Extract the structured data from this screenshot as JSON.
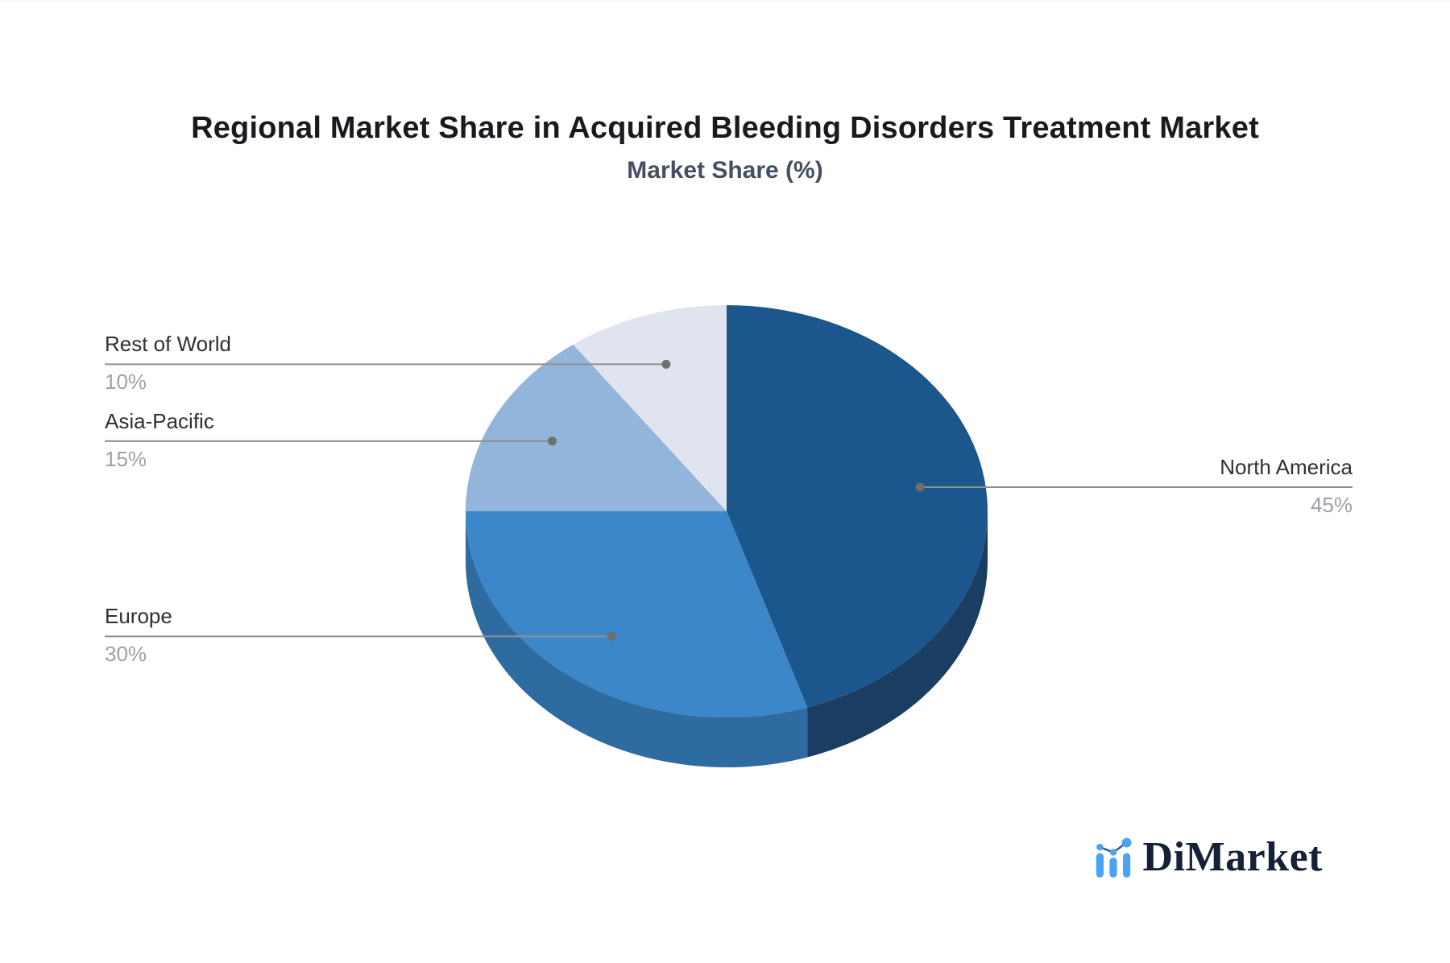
{
  "page": {
    "background": "#ffffff",
    "top_edge_line": "#f5f7fa"
  },
  "chart_data": {
    "type": "pie",
    "style": "3d",
    "title": "Regional Market Share in Acquired Bleeding Disorders Treatment Market",
    "subtitle": "Market Share (%)",
    "unit": "%",
    "direction": "clockwise",
    "start_at": "top",
    "legend_position": "none",
    "slices": [
      {
        "label": "North America",
        "value": 45,
        "display": "45%",
        "color": "#1b578c",
        "side_color": "#1a3d62"
      },
      {
        "label": "Europe",
        "value": 30,
        "display": "30%",
        "color": "#3c87c9",
        "side_color": "#2e6ba1"
      },
      {
        "label": "Asia-Pacific",
        "value": 15,
        "display": "15%",
        "color": "#93b5db",
        "side_color": "#7d9cc2"
      },
      {
        "label": "Rest of World",
        "value": 10,
        "display": "10%",
        "color": "#dfe4ef",
        "side_color": "#c3cadb"
      }
    ],
    "title_color": "#191a1f",
    "subtitle_color": "#454f63",
    "label_name_color": "#303034",
    "label_value_color": "#9ca1a8",
    "leader_line_color": "#8f8f8f",
    "leader_dot_color": "#6f6f6f"
  },
  "branding": {
    "name": "DiMarket",
    "icon": "bar-chart-icon",
    "icon_color": "#4ba3f5",
    "icon_line_color": "#2b5490",
    "text_color": "#152137"
  }
}
